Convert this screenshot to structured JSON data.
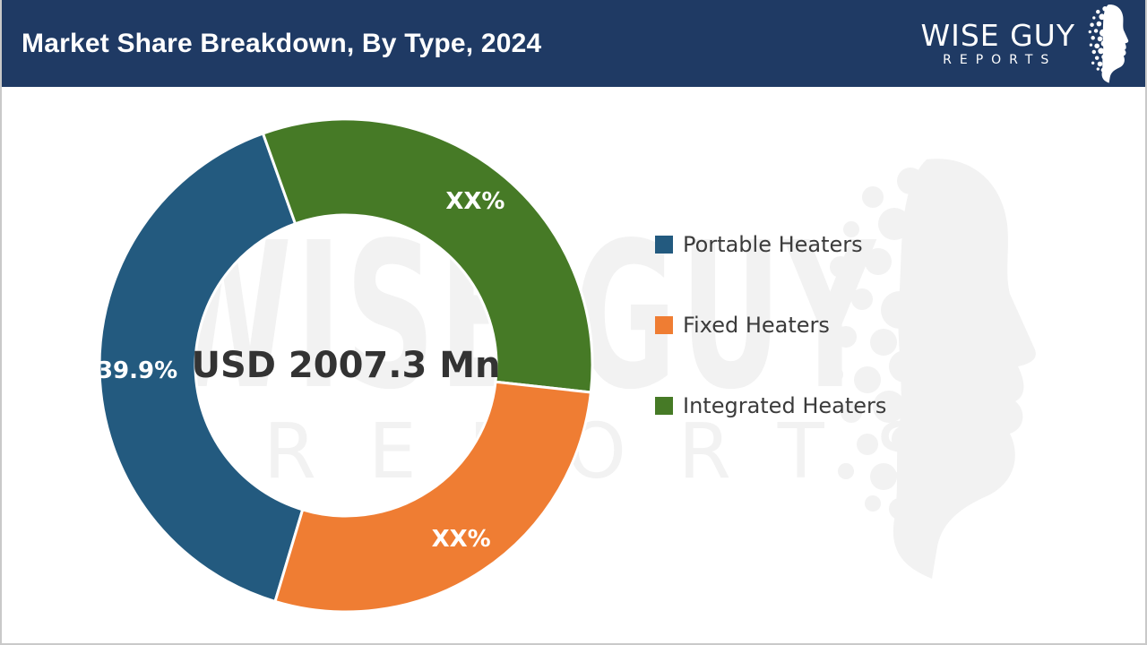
{
  "header": {
    "title": "Market Share Breakdown, By Type, 2024",
    "logo_line1": "WISE GUY",
    "logo_line2": "REPORTS"
  },
  "watermark": {
    "line1": "WISE GUY",
    "line2": "REPORTS"
  },
  "chart_data": {
    "type": "pie",
    "subtype": "donut",
    "title": "Market Share Breakdown, By Type, 2024",
    "center_label": "USD 2007.3 Mn",
    "legend_position": "right",
    "start_angle_clock_deg": 196.7,
    "draw_order": [
      0,
      2,
      1
    ],
    "donut_hole_ratio": 0.61,
    "series": [
      {
        "label": "Portable Heaters",
        "value_pct": 39.9,
        "display_label": "39.9%",
        "color": "#235a7f"
      },
      {
        "label": "Fixed Heaters",
        "value_pct": 27.9,
        "display_label": "XX%",
        "color": "#ef7d33"
      },
      {
        "label": "Integrated Heaters",
        "value_pct": 32.2,
        "display_label": "XX%",
        "color": "#467a26"
      }
    ]
  },
  "colors": {
    "header_bg": "#1f3a64",
    "center_text": "#333333",
    "legend_text": "#3b3b3b",
    "watermark": "#f2f2f2",
    "page_border": "#c9c9c9",
    "slice_divider": "#ffffff"
  }
}
